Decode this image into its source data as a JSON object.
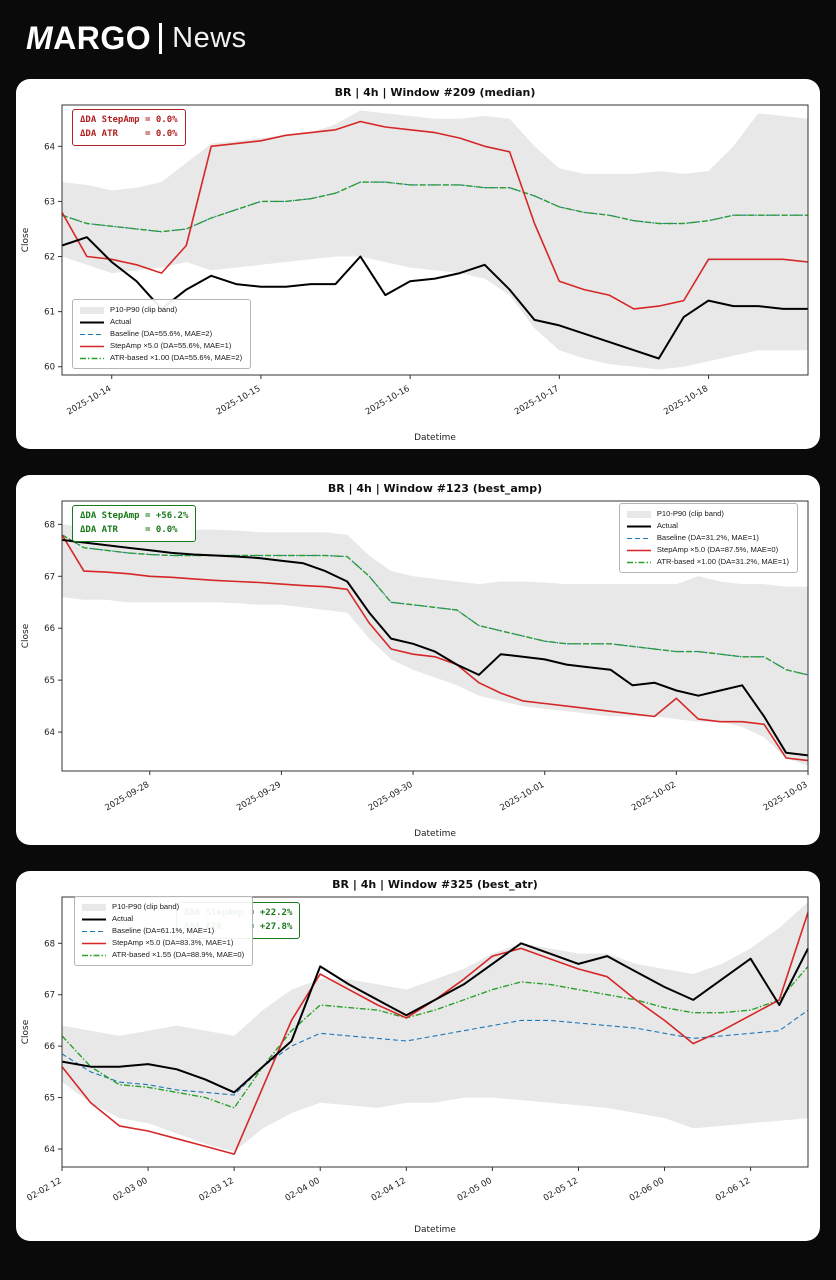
{
  "header": {
    "brand": "MARGO",
    "suffix": "News"
  },
  "chart_data": [
    {
      "type": "line",
      "title": "BR | 4h | Window #209 (median)",
      "xlabel": "Datetime",
      "ylabel": "Close",
      "ylim": [
        59.85,
        64.75
      ],
      "yticks": [
        60,
        61,
        62,
        63,
        64
      ],
      "xtick_positions": [
        2,
        8,
        14,
        20,
        26
      ],
      "xtick_labels": [
        "2025-10-14",
        "2025-10-15",
        "2025-10-16",
        "2025-10-17",
        "2025-10-18"
      ],
      "legend_loc": "lower-left",
      "grid": false,
      "annotation": {
        "lines": [
          "ΔDA StepAmp = 0.0%",
          "ΔDA ATR     = 0.0%"
        ],
        "color": "#b22222"
      },
      "band": {
        "label": "P10-P90 (clip band)",
        "color": "#e8e8e8",
        "upper": [
          63.35,
          63.3,
          63.2,
          63.25,
          63.35,
          63.7,
          64.05,
          64.1,
          64.15,
          64.2,
          64.25,
          64.4,
          64.65,
          64.6,
          64.55,
          64.5,
          64.5,
          64.55,
          64.5,
          64.0,
          63.6,
          63.5,
          63.5,
          63.5,
          63.55,
          63.5,
          63.55,
          64.0,
          64.6,
          64.55,
          64.5
        ],
        "lower": [
          62.0,
          61.85,
          61.7,
          61.75,
          61.8,
          61.9,
          61.75,
          61.8,
          61.85,
          61.9,
          61.95,
          62.0,
          62.0,
          61.9,
          61.8,
          61.75,
          61.7,
          61.6,
          61.3,
          60.7,
          60.3,
          60.15,
          60.05,
          60.0,
          59.95,
          60.0,
          60.1,
          60.2,
          60.3,
          60.3,
          60.3
        ]
      },
      "draw_order": [
        1,
        3,
        2,
        0
      ],
      "series": [
        {
          "id": "actual",
          "name": "Actual",
          "color": "#000000",
          "width": 2,
          "dash": "",
          "values": [
            62.2,
            62.35,
            61.9,
            61.55,
            61.05,
            61.4,
            61.65,
            61.5,
            61.45,
            61.45,
            61.5,
            61.5,
            62.0,
            61.3,
            61.55,
            61.6,
            61.7,
            61.85,
            61.4,
            60.85,
            60.75,
            60.6,
            60.45,
            60.3,
            60.15,
            60.9,
            61.2,
            61.1,
            61.1,
            61.05,
            61.05
          ]
        },
        {
          "id": "baseline",
          "name": "Baseline (DA=55.6%, MAE=2)",
          "color": "#1f77b4",
          "width": 1.1,
          "dash": "5,3",
          "values": [
            62.75,
            62.6,
            62.55,
            62.5,
            62.45,
            62.5,
            62.7,
            62.85,
            63.0,
            63.0,
            63.05,
            63.15,
            63.35,
            63.35,
            63.3,
            63.3,
            63.3,
            63.25,
            63.25,
            63.1,
            62.9,
            62.8,
            62.75,
            62.65,
            62.6,
            62.6,
            62.65,
            62.75,
            62.75,
            62.75,
            62.75
          ]
        },
        {
          "id": "stepamp",
          "name": "StepAmp ×5.0 (DA=55.6%, MAE=1)",
          "color": "#d62728",
          "width": 1.6,
          "dash": "",
          "values": [
            62.8,
            62.0,
            61.95,
            61.85,
            61.7,
            62.2,
            64.0,
            64.05,
            64.1,
            64.2,
            64.25,
            64.3,
            64.45,
            64.35,
            64.3,
            64.25,
            64.15,
            64.0,
            63.9,
            62.6,
            61.55,
            61.4,
            61.3,
            61.05,
            61.1,
            61.2,
            61.95,
            61.95,
            61.95,
            61.95,
            61.9
          ]
        },
        {
          "id": "atr",
          "name": "ATR-based ×1.00 (DA=55.6%, MAE=2)",
          "color": "#2ca02c",
          "width": 1.4,
          "dash": "6,2,1.5,2",
          "values": [
            62.75,
            62.6,
            62.55,
            62.5,
            62.45,
            62.5,
            62.7,
            62.85,
            63.0,
            63.0,
            63.05,
            63.15,
            63.35,
            63.35,
            63.3,
            63.3,
            63.3,
            63.25,
            63.25,
            63.1,
            62.9,
            62.8,
            62.75,
            62.65,
            62.6,
            62.6,
            62.65,
            62.75,
            62.75,
            62.75,
            62.75
          ]
        }
      ]
    },
    {
      "type": "line",
      "title": "BR | 4h | Window #123 (best_amp)",
      "xlabel": "Datetime",
      "ylabel": "Close",
      "ylim": [
        63.25,
        68.45
      ],
      "yticks": [
        64,
        65,
        66,
        67,
        68
      ],
      "xtick_positions": [
        4,
        10,
        16,
        22,
        28,
        34
      ],
      "xtick_labels": [
        "2025-09-28",
        "2025-09-29",
        "2025-09-30",
        "2025-10-01",
        "2025-10-02",
        "2025-10-03"
      ],
      "legend_loc": "upper-right",
      "grid": false,
      "annotation": {
        "lines": [
          "ΔDA StepAmp = +56.2%",
          "ΔDA ATR     = 0.0%"
        ],
        "color": "#1a7a1a"
      },
      "band": {
        "label": "P10-P90 (clip band)",
        "color": "#e8e8e8",
        "upper": [
          68.0,
          67.95,
          67.9,
          67.9,
          67.9,
          67.9,
          67.9,
          67.9,
          67.88,
          67.85,
          67.85,
          67.85,
          67.85,
          67.8,
          67.4,
          67.1,
          67.0,
          66.95,
          66.9,
          66.85,
          66.9,
          66.9,
          66.88,
          66.85,
          66.85,
          66.85,
          66.85,
          66.85,
          66.85,
          67.0,
          66.9,
          66.85,
          66.85,
          66.8,
          66.8
        ],
        "lower": [
          66.6,
          66.55,
          66.55,
          66.5,
          66.5,
          66.5,
          66.5,
          66.5,
          66.48,
          66.45,
          66.45,
          66.4,
          66.35,
          66.3,
          65.8,
          65.4,
          65.2,
          65.05,
          64.9,
          64.7,
          64.6,
          64.5,
          64.45,
          64.4,
          64.35,
          64.3,
          64.3,
          64.3,
          64.25,
          64.2,
          64.2,
          64.1,
          63.9,
          63.5,
          63.35
        ]
      },
      "draw_order": [
        1,
        3,
        2,
        0
      ],
      "series": [
        {
          "id": "actual",
          "name": "Actual",
          "color": "#000000",
          "width": 2,
          "dash": "",
          "values": [
            67.7,
            67.65,
            67.6,
            67.55,
            67.5,
            67.45,
            67.42,
            67.4,
            67.38,
            67.35,
            67.3,
            67.25,
            67.1,
            66.9,
            66.3,
            65.8,
            65.7,
            65.55,
            65.3,
            65.1,
            65.5,
            65.45,
            65.4,
            65.3,
            65.25,
            65.2,
            64.9,
            64.95,
            64.8,
            64.7,
            64.8,
            64.9,
            64.3,
            63.6,
            63.55
          ]
        },
        {
          "id": "baseline",
          "name": "Baseline (DA=31.2%, MAE=1)",
          "color": "#1f77b4",
          "width": 1.1,
          "dash": "5,3",
          "values": [
            67.8,
            67.55,
            67.5,
            67.45,
            67.42,
            67.4,
            67.4,
            67.4,
            67.4,
            67.4,
            67.4,
            67.4,
            67.4,
            67.38,
            67.0,
            66.5,
            66.45,
            66.4,
            66.35,
            66.05,
            65.95,
            65.85,
            65.75,
            65.7,
            65.7,
            65.7,
            65.65,
            65.6,
            65.55,
            65.55,
            65.5,
            65.45,
            65.45,
            65.2,
            65.1
          ]
        },
        {
          "id": "stepamp",
          "name": "StepAmp ×5.0 (DA=87.5%, MAE=0)",
          "color": "#d62728",
          "width": 1.6,
          "dash": "",
          "values": [
            67.8,
            67.1,
            67.08,
            67.05,
            67.0,
            66.98,
            66.95,
            66.92,
            66.9,
            66.88,
            66.85,
            66.82,
            66.8,
            66.75,
            66.1,
            65.6,
            65.5,
            65.45,
            65.3,
            64.95,
            64.75,
            64.6,
            64.55,
            64.5,
            64.45,
            64.4,
            64.35,
            64.3,
            64.65,
            64.25,
            64.2,
            64.2,
            64.15,
            63.5,
            63.45
          ]
        },
        {
          "id": "atr",
          "name": "ATR-based ×1.00 (DA=31.2%, MAE=1)",
          "color": "#2ca02c",
          "width": 1.4,
          "dash": "6,2,1.5,2",
          "values": [
            67.8,
            67.55,
            67.5,
            67.45,
            67.42,
            67.4,
            67.4,
            67.4,
            67.4,
            67.4,
            67.4,
            67.4,
            67.4,
            67.38,
            67.0,
            66.5,
            66.45,
            66.4,
            66.35,
            66.05,
            65.95,
            65.85,
            65.75,
            65.7,
            65.7,
            65.7,
            65.65,
            65.6,
            65.55,
            65.55,
            65.5,
            65.45,
            65.45,
            65.2,
            65.1
          ]
        }
      ]
    },
    {
      "type": "line",
      "title": "BR | 4h | Window #325 (best_atr)",
      "xlabel": "Datetime",
      "ylabel": "Close",
      "ylim": [
        63.65,
        68.9
      ],
      "yticks": [
        64,
        65,
        66,
        67,
        68
      ],
      "xtick_positions": [
        0,
        3,
        6,
        9,
        12,
        15,
        18,
        21,
        24
      ],
      "xtick_labels": [
        "02-02 12",
        "02-03 00",
        "02-03 12",
        "02-04 00",
        "02-04 12",
        "02-05 00",
        "02-05 12",
        "02-06 00",
        "02-06 12"
      ],
      "legend_loc": "upper-left",
      "grid": false,
      "annotation": {
        "lines": [
          "ΔDA StepAmp = +22.2%",
          "ΔDA ATR     = +27.8%"
        ],
        "color": "#1a7a1a"
      },
      "band": {
        "label": "P10-P90 (clip band)",
        "color": "#e8e8e8",
        "upper": [
          66.4,
          66.3,
          66.2,
          66.3,
          66.4,
          66.3,
          66.2,
          66.7,
          67.1,
          67.3,
          67.3,
          67.2,
          67.1,
          67.3,
          67.5,
          67.8,
          68.0,
          67.9,
          67.8,
          67.8,
          67.6,
          67.5,
          67.4,
          67.6,
          67.9,
          68.3,
          68.8
        ],
        "lower": [
          65.3,
          64.9,
          64.6,
          64.5,
          64.3,
          64.1,
          63.95,
          64.4,
          64.7,
          64.9,
          64.85,
          64.8,
          64.9,
          64.9,
          65.0,
          65.0,
          64.95,
          64.9,
          64.85,
          64.8,
          64.7,
          64.6,
          64.4,
          64.45,
          64.5,
          64.55,
          64.6
        ]
      },
      "draw_order": [
        1,
        3,
        2,
        0
      ],
      "series": [
        {
          "id": "actual",
          "name": "Actual",
          "color": "#000000",
          "width": 2,
          "dash": "",
          "values": [
            65.7,
            65.6,
            65.6,
            65.65,
            65.55,
            65.35,
            65.1,
            65.6,
            66.1,
            67.55,
            67.2,
            66.9,
            66.6,
            66.9,
            67.2,
            67.6,
            68.0,
            67.8,
            67.6,
            67.75,
            67.45,
            67.15,
            66.9,
            67.3,
            67.7,
            66.8,
            67.9
          ]
        },
        {
          "id": "baseline",
          "name": "Baseline (DA=61.1%, MAE=1)",
          "color": "#1f77b4",
          "width": 1.1,
          "dash": "5,3",
          "values": [
            65.85,
            65.5,
            65.3,
            65.25,
            65.15,
            65.1,
            65.05,
            65.6,
            66.0,
            66.25,
            66.2,
            66.15,
            66.1,
            66.2,
            66.3,
            66.4,
            66.5,
            66.5,
            66.45,
            66.4,
            66.35,
            66.25,
            66.15,
            66.2,
            66.25,
            66.3,
            66.7
          ]
        },
        {
          "id": "stepamp",
          "name": "StepAmp ×5.0 (DA=83.3%, MAE=1)",
          "color": "#d62728",
          "width": 1.6,
          "dash": "",
          "values": [
            65.6,
            64.9,
            64.45,
            64.35,
            64.2,
            64.05,
            63.9,
            65.2,
            66.5,
            67.4,
            67.1,
            66.8,
            66.55,
            66.9,
            67.3,
            67.75,
            67.9,
            67.7,
            67.5,
            67.35,
            66.9,
            66.5,
            66.05,
            66.3,
            66.6,
            66.9,
            68.6
          ]
        },
        {
          "id": "atr",
          "name": "ATR-based ×1.55 (DA=88.9%, MAE=0)",
          "color": "#2ca02c",
          "width": 1.4,
          "dash": "6,2,1.5,2",
          "values": [
            66.2,
            65.6,
            65.25,
            65.2,
            65.1,
            65.0,
            64.8,
            65.6,
            66.3,
            66.8,
            66.75,
            66.7,
            66.55,
            66.7,
            66.9,
            67.1,
            67.25,
            67.2,
            67.1,
            67.0,
            66.9,
            66.75,
            66.65,
            66.65,
            66.7,
            66.9,
            67.55
          ]
        }
      ]
    }
  ]
}
